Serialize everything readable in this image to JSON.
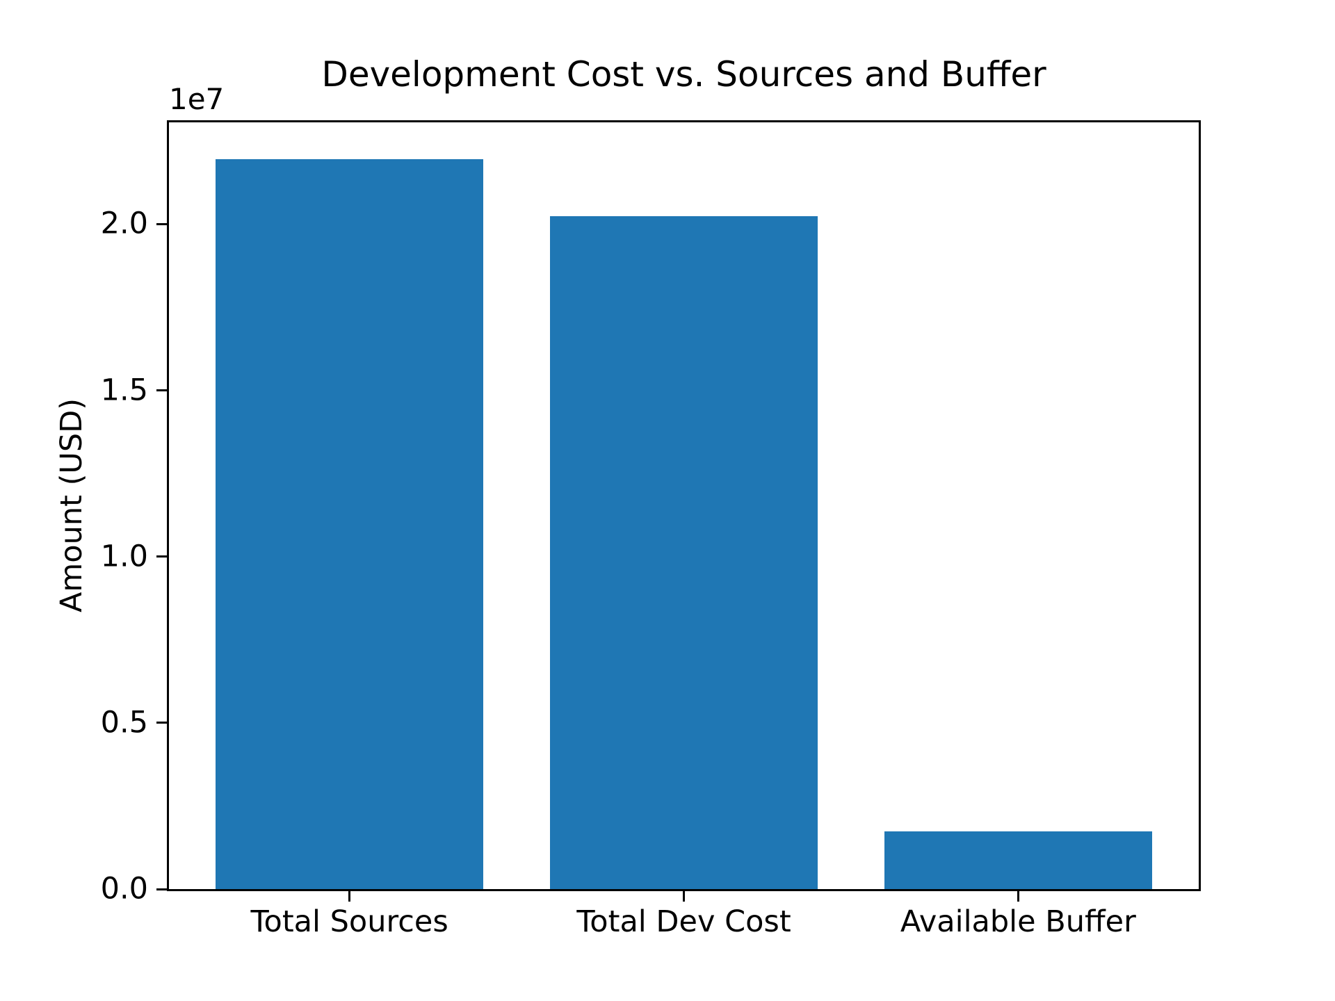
{
  "figure": {
    "background": "#ffffff",
    "text_color": "#000000"
  },
  "chart_data": {
    "type": "bar",
    "title": "Development Cost vs. Sources and Buffer",
    "categories": [
      "Total Sources",
      "Total Dev Cost",
      "Available Buffer"
    ],
    "values": [
      21960000,
      20230000,
      1730000
    ],
    "xlabel": "",
    "ylabel": "Amount (USD)",
    "y_offset_text": "1e7",
    "ylim": [
      0,
      23060000
    ],
    "yticks": [
      0,
      5000000,
      10000000,
      15000000,
      20000000
    ],
    "ytick_labels": [
      "0.0",
      "0.5",
      "1.0",
      "1.5",
      "2.0"
    ],
    "bar_color": "#1f77b4",
    "axis_color": "#000000",
    "bar_width_fraction": 0.8,
    "grid": false,
    "legend": false
  }
}
